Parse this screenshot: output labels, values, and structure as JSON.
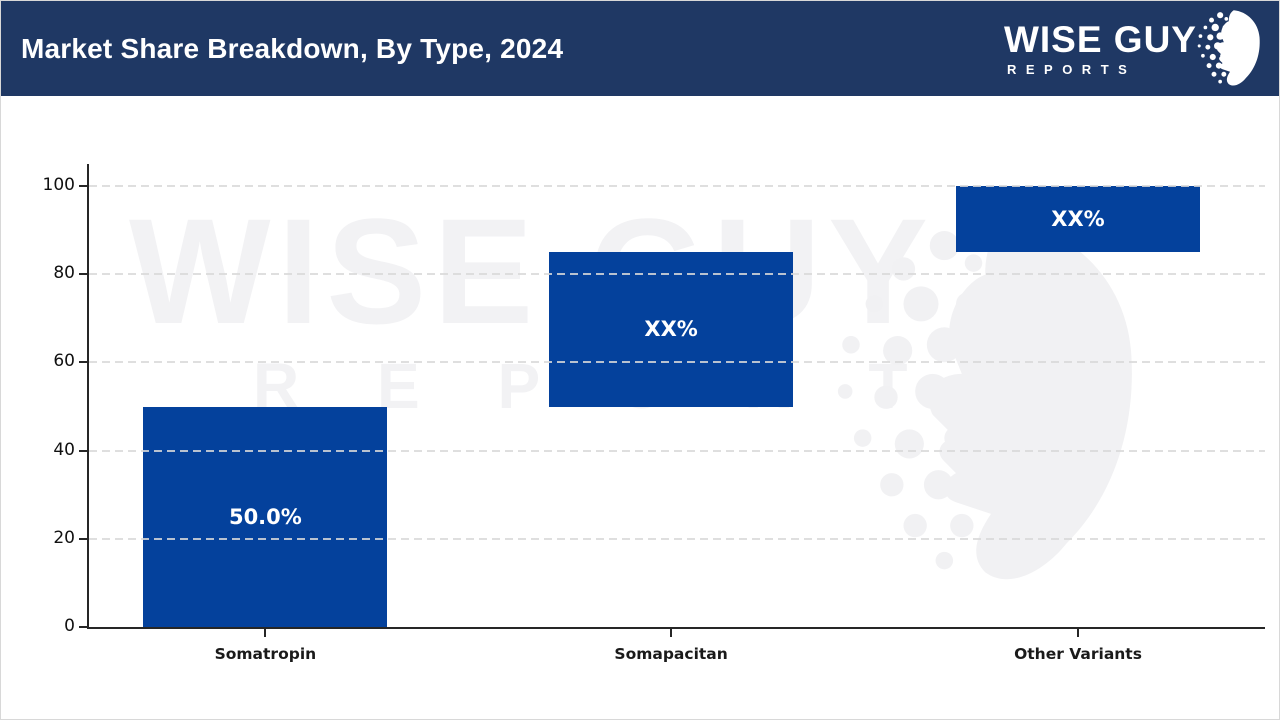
{
  "header": {
    "title": "Market Share Breakdown, By Type, 2024",
    "logo_line1": "WISE GUY",
    "logo_line2": "REPORTS",
    "bg_color": "#1f3864"
  },
  "watermark": {
    "line1": "WISE GUY",
    "line2": "R E P O R T S"
  },
  "chart_data": {
    "type": "bar",
    "subtype": "segmented-breakdown-floating-bars",
    "title": "Market Share Breakdown, By Type, 2024",
    "categories": [
      "Somatropin",
      "Somapacitan",
      "Other Variants"
    ],
    "bars": [
      {
        "category": "Somatropin",
        "start": 0,
        "end": 50,
        "value": 50,
        "label": "50.0%"
      },
      {
        "category": "Somapacitan",
        "start": 50,
        "end": 85,
        "value": 35,
        "label": "XX%"
      },
      {
        "category": "Other Variants",
        "start": 85,
        "end": 100,
        "value": 15,
        "label": "XX%"
      }
    ],
    "xlabel": "",
    "ylabel": "",
    "ylim": [
      0,
      105
    ],
    "yticks": [
      0,
      20,
      40,
      60,
      80,
      100
    ],
    "grid": "horizontal-dashed",
    "legend": "none",
    "bar_color": "#04419c",
    "bar_label_color": "#ffffff",
    "axis_color": "#262626",
    "gridline_color": "#d9d9d9"
  }
}
